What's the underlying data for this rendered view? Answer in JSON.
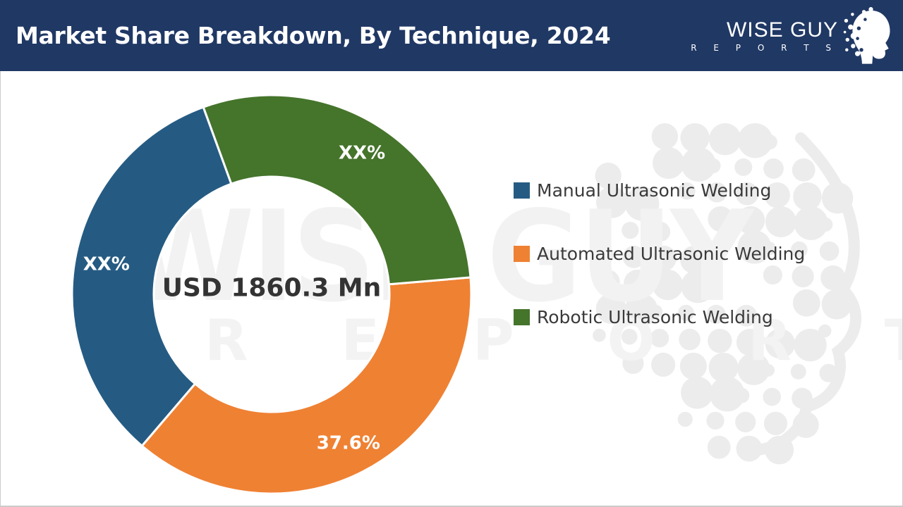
{
  "header": {
    "title": "Market Share Breakdown, By Technique, 2024",
    "logo": {
      "wordmark": "WISE GUY",
      "subtitle": "R E P O R T S"
    }
  },
  "watermark": {
    "line1": "WISE GUY",
    "line2": "R E P O R T S"
  },
  "chart_data": {
    "type": "pie",
    "subtype": "donut",
    "title": "Market Share Breakdown, By Technique, 2024",
    "center_label": "USD 1860.3 Mn",
    "legend_position": "right",
    "start_angle_deg": 110,
    "direction": "ccw",
    "inner_radius_ratio": 0.59,
    "slices": [
      {
        "name": "Manual Ultrasonic Welding",
        "label": "XX%",
        "value_pct": 33.2,
        "value_masked": true,
        "color": "#255b83"
      },
      {
        "name": "Automated Ultrasonic Welding",
        "label": "37.6%",
        "value_pct": 37.6,
        "value_masked": false,
        "color": "#ef8133"
      },
      {
        "name": "Robotic Ultrasonic Welding",
        "label": "XX%",
        "value_pct": 29.2,
        "value_masked": true,
        "color": "#45742b"
      }
    ]
  },
  "colors": {
    "header_bg": "#203864",
    "slice_label_text": "#ffffff",
    "center_text": "#333333",
    "legend_text": "#3a3a3a",
    "watermark": "#f2f2f2",
    "border": "#cccccc"
  }
}
